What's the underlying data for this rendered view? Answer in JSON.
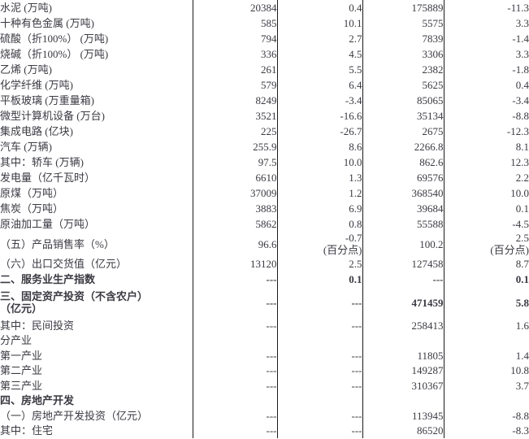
{
  "colors": {
    "background": "#ffffff",
    "text": "#3a3a42",
    "grid_line": "#1a1a1a"
  },
  "table": {
    "description_note": "(百分点)",
    "rows": [
      {
        "label": "水泥 (万吨)",
        "v1": "20384",
        "v2": "0.4",
        "v3": "175889",
        "v4": "-11.3",
        "bold": false
      },
      {
        "label": "十种有色金属 (万吨)",
        "v1": "585",
        "v2": "10.1",
        "v3": "5575",
        "v4": "3.3",
        "bold": false
      },
      {
        "label": "硫酸（折100%） (万吨)",
        "v1": "794",
        "v2": "2.7",
        "v3": "7839",
        "v4": "-1.4",
        "bold": false
      },
      {
        "label": "烧碱（折100%） (万吨)",
        "v1": "336",
        "v2": "4.5",
        "v3": "3306",
        "v4": "3.3",
        "bold": false
      },
      {
        "label": "乙烯 (万吨)",
        "v1": "261",
        "v2": "5.5",
        "v3": "2382",
        "v4": "-1.8",
        "bold": false
      },
      {
        "label": "化学纤维 (万吨)",
        "v1": "579",
        "v2": "6.4",
        "v3": "5625",
        "v4": "0.4",
        "bold": false
      },
      {
        "label": "平板玻璃 (万重量箱)",
        "v1": "8249",
        "v2": "-3.4",
        "v3": "85065",
        "v4": "-3.4",
        "bold": false
      },
      {
        "label": "微型计算机设备 (万台)",
        "v1": "3521",
        "v2": "-16.6",
        "v3": "35134",
        "v4": "-8.8",
        "bold": false
      },
      {
        "label": "集成电路 (亿块)",
        "v1": "225",
        "v2": "-26.7",
        "v3": "2675",
        "v4": "-12.3",
        "bold": false
      },
      {
        "label": "汽车 (万辆)",
        "v1": "255.9",
        "v2": "8.6",
        "v3": "2266.8",
        "v4": "8.1",
        "bold": false
      },
      {
        "label": "其中：轿车 (万辆)",
        "v1": "97.5",
        "v2": "10.0",
        "v3": "862.6",
        "v4": "12.3",
        "bold": false
      },
      {
        "label": "发电量（亿千瓦时）",
        "v1": "6610",
        "v2": "1.3",
        "v3": "69576",
        "v4": "2.2",
        "bold": false
      },
      {
        "label": "原煤（万吨）",
        "v1": "37009",
        "v2": "1.2",
        "v3": "368540",
        "v4": "10.0",
        "bold": false
      },
      {
        "label": "焦炭（万吨）",
        "v1": "3883",
        "v2": "6.9",
        "v3": "39684",
        "v4": "0.1",
        "bold": false
      },
      {
        "label": "原油加工量（万吨）",
        "v1": "5862",
        "v2": "0.8",
        "v3": "55588",
        "v4": "-4.5",
        "bold": false
      },
      {
        "label": "（五）产品销售率（%）",
        "v1": "96.6",
        "v2": "-0.7",
        "v2b": "(百分点)",
        "v3": "100.2",
        "v4": "2.5",
        "v4b": "(百分点)",
        "bold": false
      },
      {
        "label": "（六）出口交货值（亿元）",
        "v1": "13120",
        "v2": "2.5",
        "v3": "127458",
        "v4": "8.7",
        "bold": false
      },
      {
        "label": "二、服务业生产指数",
        "v1": "---",
        "v2": "0.1",
        "v3": "---",
        "v4": "0.1",
        "bold": true
      },
      {
        "label": "三、固定资产投资（不含农户）",
        "label2": "（亿元）",
        "v1": "---",
        "v2": "---",
        "v3": "471459",
        "v4": "5.8",
        "bold": true
      },
      {
        "label": "其中：民间投资",
        "v1": "---",
        "v2": "---",
        "v3": "258413",
        "v4": "1.6",
        "bold": false
      },
      {
        "label": "分产业",
        "v1": "",
        "v2": "",
        "v3": "",
        "v4": "",
        "bold": false
      },
      {
        "label": "第一产业",
        "v1": "---",
        "v2": "---",
        "v3": "11805",
        "v4": "1.4",
        "bold": false
      },
      {
        "label": "第二产业",
        "v1": "---",
        "v2": "---",
        "v3": "149287",
        "v4": "10.8",
        "bold": false
      },
      {
        "label": "第三产业",
        "v1": "---",
        "v2": "---",
        "v3": "310367",
        "v4": "3.7",
        "bold": false
      },
      {
        "label": "四、房地产开发",
        "v1": "",
        "v2": "",
        "v3": "",
        "v4": "",
        "bold": true
      },
      {
        "label": "（一）房地产开发投资（亿元）",
        "v1": "---",
        "v2": "---",
        "v3": "113945",
        "v4": "-8.8",
        "bold": false
      },
      {
        "label": "其中：住宅",
        "v1": "---",
        "v2": "---",
        "v3": "86520",
        "v4": "-8.3",
        "bold": false
      }
    ]
  }
}
